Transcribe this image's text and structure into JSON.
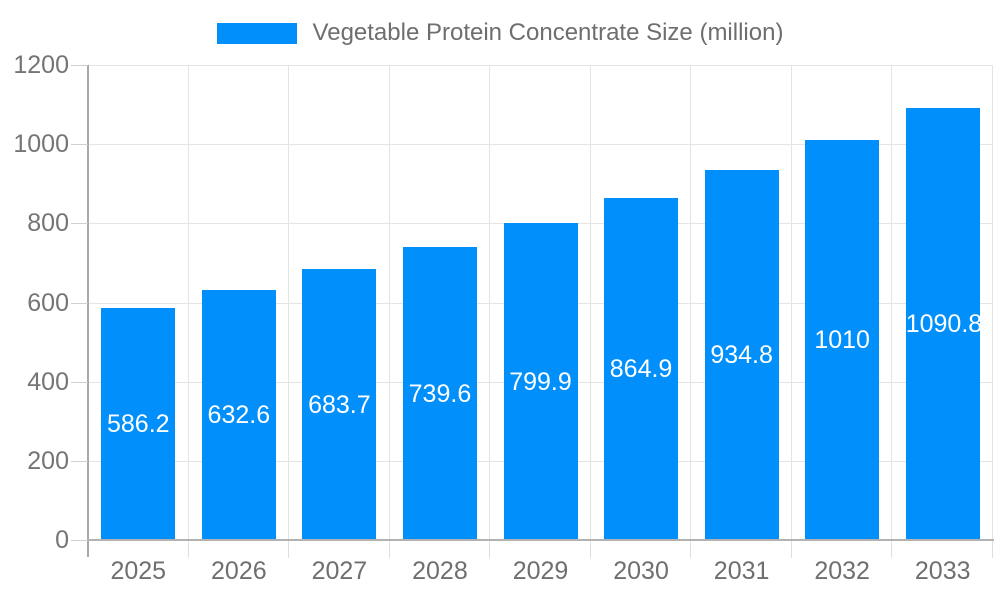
{
  "chart_data": {
    "type": "bar",
    "title": "Vegetable Protein Concentrate Size (million)",
    "legend_position": "top",
    "categories": [
      "2025",
      "2026",
      "2027",
      "2028",
      "2029",
      "2030",
      "2031",
      "2032",
      "2033"
    ],
    "series": [
      {
        "name": "Vegetable Protein Concentrate Size (million)",
        "values": [
          586.2,
          632.6,
          683.7,
          739.6,
          799.9,
          864.9,
          934.8,
          1010,
          1090.8
        ],
        "value_labels": [
          "586.2",
          "632.6",
          "683.7",
          "739.6",
          "799.9",
          "864.9",
          "934.8",
          "1010",
          "1090.8"
        ]
      }
    ],
    "xlabel": "",
    "ylabel": "",
    "ylim": [
      0,
      1200
    ],
    "yticks": [
      0,
      200,
      400,
      600,
      800,
      1000,
      1200
    ],
    "ytick_labels": [
      "0",
      "200",
      "400",
      "600",
      "800",
      "1000",
      "1200"
    ],
    "grid": true,
    "colors": {
      "bar": "#008FFB",
      "bar_value_text": "#ffffff",
      "axis_label": "#757575",
      "legend_text": "#6e6e6e",
      "axis_line": "#b0b0b0",
      "gridline": "#e4e4e4"
    }
  }
}
